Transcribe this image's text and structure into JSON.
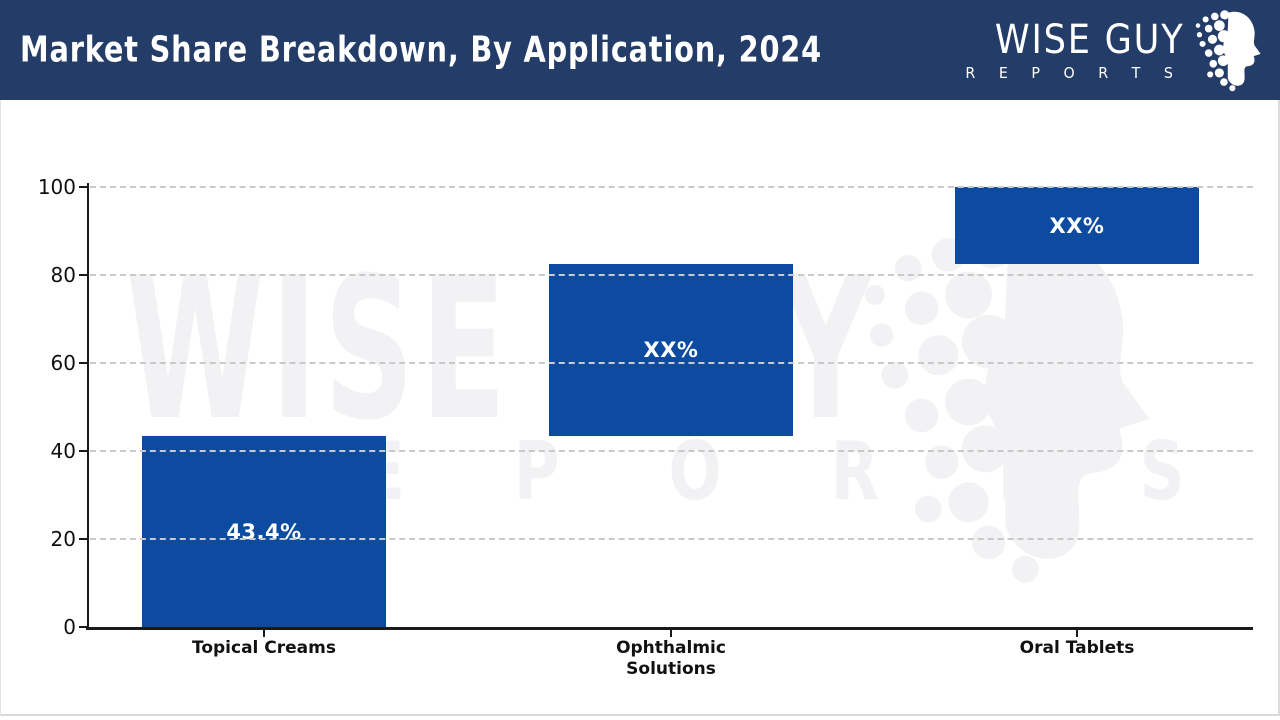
{
  "header": {
    "title": "Market Share Breakdown, By Application, 2024",
    "bg_color": "#243c68",
    "logo": {
      "line1": "WISE GUY",
      "line2": "R E P O R T S",
      "head_icon": "dotted-head-profile"
    }
  },
  "watermark": {
    "line1": "WISE GUY",
    "line2": "R E P O R T S",
    "head_icon": "dotted-head-profile",
    "color": "#f2f2f4"
  },
  "chart_data": {
    "type": "bar",
    "subtype": "waterfall-stacked-percent",
    "title": "Market Share Breakdown, By Application, 2024",
    "categories": [
      "Topical Creams",
      "Ophthalmic\nSolutions",
      "Oral Tablets"
    ],
    "segments": [
      {
        "category": "Topical Creams",
        "start": 0,
        "end": 43.4,
        "label": "43.4%"
      },
      {
        "category": "Ophthalmic Solutions",
        "start": 43.4,
        "end": 82.5,
        "label": "XX%"
      },
      {
        "category": "Oral Tablets",
        "start": 82.5,
        "end": 100,
        "label": "XX%"
      }
    ],
    "xlabel": "",
    "ylabel": "",
    "ylim": [
      0,
      100
    ],
    "yticks": [
      0,
      20,
      40,
      60,
      80,
      100
    ],
    "grid": "horizontal dashed, drawn over bars",
    "legend": "none",
    "bar_color": "#0c4ba0",
    "bar_value_label_color": "#ffffff",
    "axis_color": "#1a1a1a"
  }
}
